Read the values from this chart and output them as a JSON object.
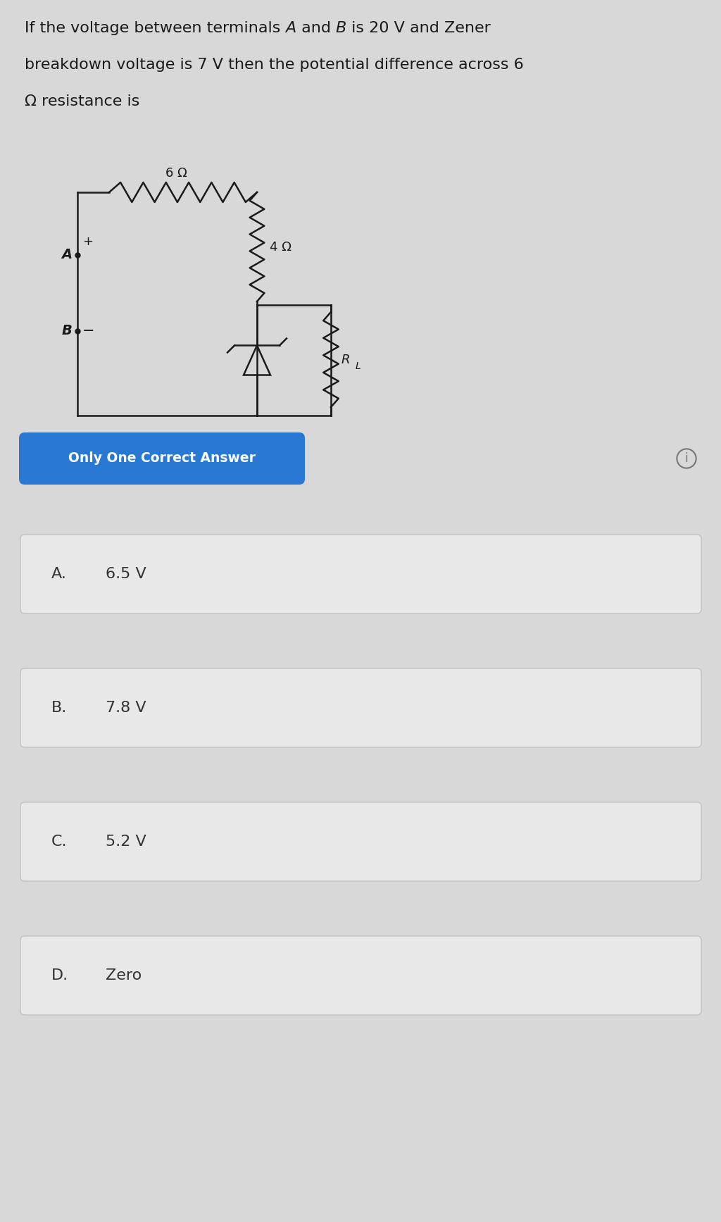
{
  "title_line1_parts": [
    {
      "text": "If the voltage between terminals ",
      "style": "normal"
    },
    {
      "text": "A",
      "style": "italic"
    },
    {
      "text": " and ",
      "style": "normal"
    },
    {
      "text": "B",
      "style": "italic"
    },
    {
      "text": " is 20 V and Zener",
      "style": "normal"
    }
  ],
  "title_line2": "breakdown voltage is 7 V then the potential difference across 6",
  "title_line3": "Ω resistance is",
  "bg_color": "#d8d8d8",
  "circuit_line_color": "#1a1a1a",
  "resistor_6_label": "6 Ω",
  "resistor_4_label": "4 Ω",
  "rl_label": "R",
  "rl_subscript": "L",
  "terminal_A_label": "A",
  "terminal_B_label": "B",
  "button_text": "Only One Correct Answer",
  "button_color": "#2979d4",
  "button_text_color": "#ffffff",
  "info_circle_color": "#777777",
  "options": [
    {
      "label": "A.",
      "text": "6.5 V"
    },
    {
      "label": "B.",
      "text": "7.8 V"
    },
    {
      "label": "C.",
      "text": "5.2 V"
    },
    {
      "label": "D.",
      "text": "Zero"
    }
  ],
  "option_bg_color": "#e8e8e8",
  "option_border_color": "#bbbbbb",
  "option_text_color": "#333333",
  "text_color": "#1a1a1a",
  "title_fontsize": 16,
  "option_fontsize": 16
}
